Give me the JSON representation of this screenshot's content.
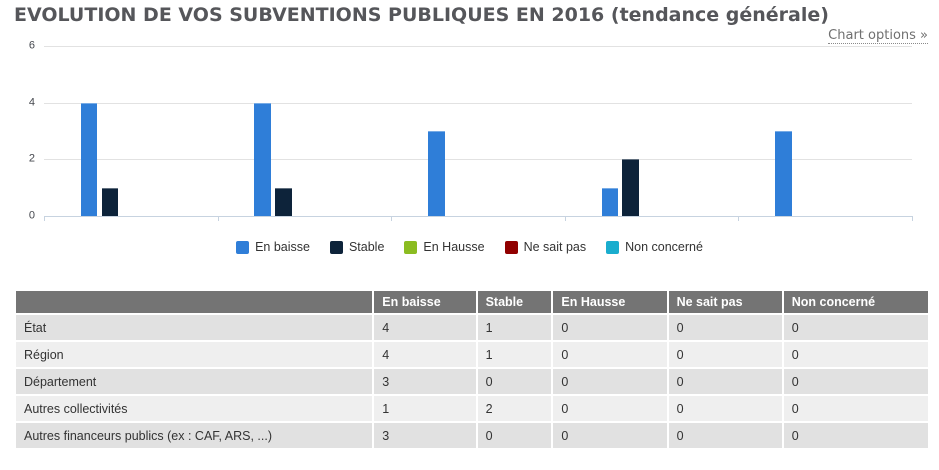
{
  "header": {
    "title": "EVOLUTION DE VOS SUBVENTIONS PUBLIQUES EN 2016 (tendance générale)",
    "chart_options_label": "Chart options »"
  },
  "chart_data": {
    "type": "bar",
    "title": "",
    "xlabel": "",
    "ylabel": "",
    "categories": [
      "État",
      "Région",
      "Département",
      "Autres collectivités",
      "Autres financeurs publics (ex : CAF, ARS, ...)"
    ],
    "series": [
      {
        "name": "En baisse",
        "color": "#2f7ed8",
        "values": [
          4,
          4,
          3,
          1,
          3
        ]
      },
      {
        "name": "Stable",
        "color": "#0d233a",
        "values": [
          1,
          1,
          0,
          2,
          0
        ]
      },
      {
        "name": "En Hausse",
        "color": "#8bbc21",
        "values": [
          0,
          0,
          0,
          0,
          0
        ]
      },
      {
        "name": "Ne sait pas",
        "color": "#910000",
        "values": [
          0,
          0,
          0,
          0,
          0
        ]
      },
      {
        "name": "Non concerné",
        "color": "#1aadce",
        "values": [
          0,
          0,
          0,
          0,
          0
        ]
      }
    ],
    "ylim": [
      0,
      6
    ],
    "yticks": [
      0,
      2,
      4,
      6
    ],
    "grid": true,
    "legend_position": "bottom-center",
    "x_tick_count": 6
  },
  "table": {
    "columns": [
      "",
      "En baisse",
      "Stable",
      "En Hausse",
      "Ne sait pas",
      "Non concerné"
    ],
    "column_widths": [
      "39.2%",
      "11.3%",
      "8.3%",
      "12.6%",
      "12.6%",
      "16%"
    ],
    "rows": [
      {
        "label": "État",
        "values": [
          4,
          1,
          0,
          0,
          0
        ]
      },
      {
        "label": "Région",
        "values": [
          4,
          1,
          0,
          0,
          0
        ]
      },
      {
        "label": "Département",
        "values": [
          3,
          0,
          0,
          0,
          0
        ]
      },
      {
        "label": "Autres collectivités",
        "values": [
          1,
          2,
          0,
          0,
          0
        ]
      },
      {
        "label": "Autres financeurs publics (ex : CAF, ARS, ...)",
        "values": [
          3,
          0,
          0,
          0,
          0
        ]
      }
    ]
  }
}
